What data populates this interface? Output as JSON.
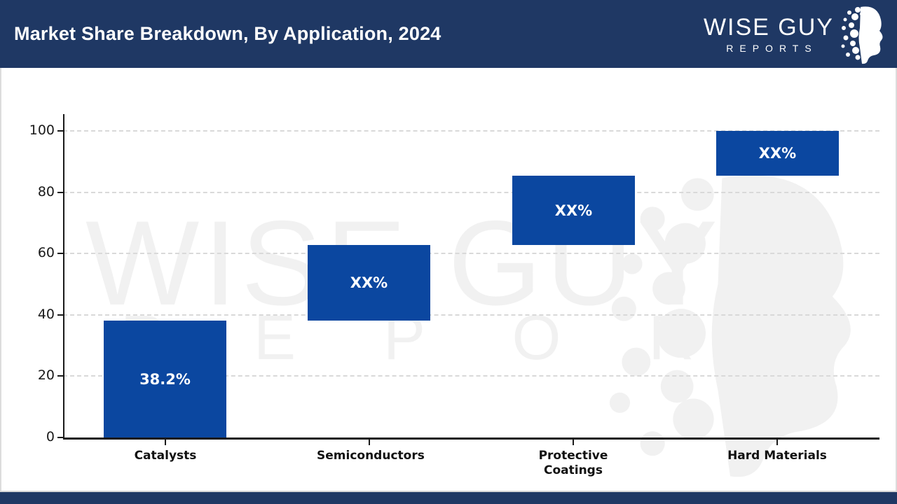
{
  "header": {
    "title": "Market Share Breakdown, By Application, 2024",
    "logo_line1": "WISE GUY",
    "logo_line2": "REPORTS"
  },
  "watermark": {
    "line1": "WISE GUY",
    "line2": "R E P O R T S"
  },
  "chart_data": {
    "type": "bar",
    "subtype": "stacked-waterfall",
    "title": "Market Share Breakdown, By Application, 2024",
    "categories": [
      "Catalysts",
      "Semiconductors",
      "Protective Coatings",
      "Hard Materials"
    ],
    "segments": [
      {
        "category": "Catalysts",
        "start": 0,
        "end": 38.2,
        "label": "38.2%"
      },
      {
        "category": "Semiconductors",
        "start": 38.2,
        "end": 62.8,
        "label": "XX%"
      },
      {
        "category": "Protective Coatings",
        "start": 62.8,
        "end": 85.4,
        "label": "XX%"
      },
      {
        "category": "Hard Materials",
        "start": 85.4,
        "end": 100,
        "label": "XX%"
      }
    ],
    "values_pct": [
      38.2,
      24.6,
      22.6,
      14.6
    ],
    "ylim": [
      0,
      100
    ],
    "yticks": [
      0,
      20,
      40,
      60,
      80,
      100
    ],
    "xlabel": "",
    "ylabel": "",
    "grid": "horizontal-dashed",
    "legend": "none"
  },
  "colors": {
    "header_bg": "#1f3864",
    "footer_bg": "#1f3864",
    "bar": "#0b47a0",
    "bar_label": "#ffffff",
    "axis": "#1a1a1a",
    "grid": "#d9d9d9",
    "watermark": "#f1f1f1"
  }
}
